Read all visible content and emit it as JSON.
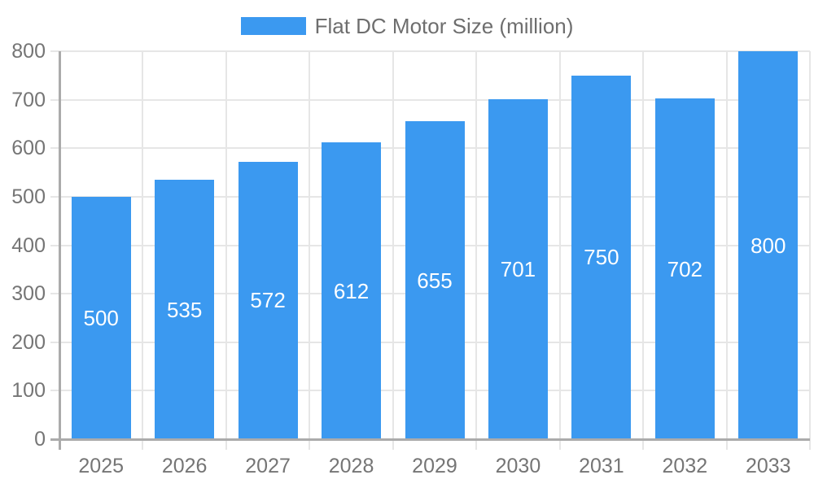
{
  "chart_data": {
    "type": "bar",
    "title": "Flat DC Motor Size (million)",
    "series_name": "Flat DC Motor Size (million)",
    "categories": [
      "2025",
      "2026",
      "2027",
      "2028",
      "2029",
      "2030",
      "2031",
      "2032",
      "2033"
    ],
    "values": [
      500,
      535,
      572,
      612,
      655,
      701,
      750,
      702,
      800
    ],
    "bar_labels": [
      "500",
      "535",
      "572",
      "612",
      "655",
      "701",
      "750",
      "702",
      "800"
    ],
    "xlabel": "",
    "ylabel": "",
    "ylim": [
      0,
      800
    ],
    "y_tick_step": 100,
    "y_tick_labels": [
      "0",
      "100",
      "200",
      "300",
      "400",
      "500",
      "600",
      "700",
      "800"
    ],
    "grid": true,
    "legend_position": "top-center",
    "bar_label_position": "middle-of-bar"
  },
  "colors": {
    "bar": "#3B99F0",
    "grid": "#E6E6E6",
    "axis": "#ABABAB",
    "tick_label": "#757575",
    "legend_label": "#6E6E6E",
    "bar_label": "#FFFFFF",
    "background": "#FFFFFF"
  }
}
